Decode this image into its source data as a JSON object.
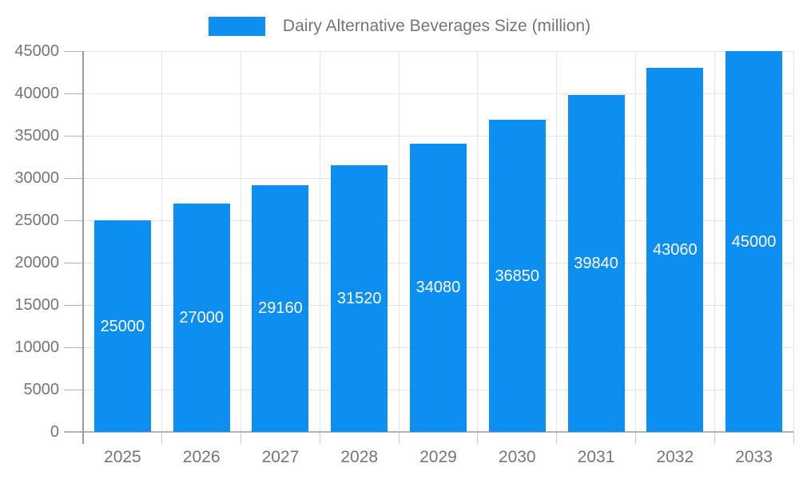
{
  "chart_data": {
    "type": "bar",
    "title": "",
    "legend": "Dairy Alternative Beverages Size (million)",
    "legend_position": "top",
    "categories": [
      "2025",
      "2026",
      "2027",
      "2028",
      "2029",
      "2030",
      "2031",
      "2032",
      "2033"
    ],
    "values": [
      25000,
      27000,
      29160,
      31520,
      34080,
      36850,
      39840,
      43060,
      45000
    ],
    "value_labels": [
      "25000",
      "27000",
      "29160",
      "31520",
      "34080",
      "36850",
      "39840",
      "43060",
      "45000"
    ],
    "xlabel": "",
    "ylabel": "",
    "ylim": [
      0,
      45000
    ],
    "ytick_step": 5000,
    "ytick_labels": [
      "0",
      "5000",
      "10000",
      "15000",
      "20000",
      "25000",
      "30000",
      "35000",
      "40000",
      "45000"
    ],
    "grid": true,
    "bar_color": "#0d8ff2",
    "value_label_color": "#ffffff",
    "axis_text_color": "#757575",
    "grid_color": "#e4e4e4",
    "axis_line_color": "#9a9a9a",
    "tick_color": "#b3b3b3"
  }
}
